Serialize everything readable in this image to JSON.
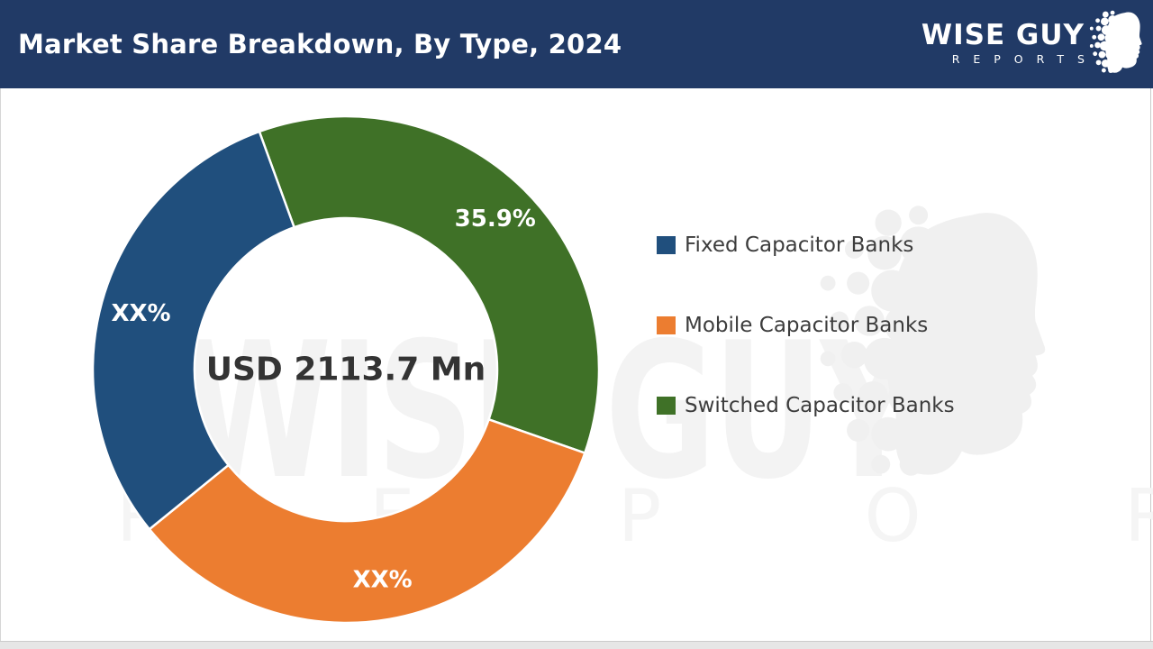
{
  "header": {
    "title": "Market Share Breakdown, By Type, 2024",
    "logo": {
      "line1": "WISE GUY",
      "line2": "REPORTS"
    }
  },
  "watermark": {
    "line1": "WISE GUY",
    "line2": "R E P O R T S"
  },
  "chart_data": {
    "type": "pie",
    "subtype": "donut",
    "title": "Market Share Breakdown, By Type, 2024",
    "center_label": "USD 2113.7 Mn",
    "rotation_deg": -20,
    "segments": [
      {
        "name": "Switched Capacitor Banks",
        "label": "35.9%",
        "value_pct_drawn": 35.9,
        "color": "#3f7127"
      },
      {
        "name": "Mobile Capacitor Banks",
        "label": "XX%",
        "value_pct_drawn": 33.8,
        "color": "#ec7d30"
      },
      {
        "name": "Fixed Capacitor Banks",
        "label": "XX%",
        "value_pct_drawn": 30.3,
        "color": "#204f7d"
      }
    ],
    "legend": [
      {
        "label": "Fixed Capacitor Banks",
        "color": "#204f7d"
      },
      {
        "label": "Mobile Capacitor Banks",
        "color": "#ec7d30"
      },
      {
        "label": "Switched Capacitor Banks",
        "color": "#3f7127"
      }
    ],
    "legend_position": "right"
  },
  "colors": {
    "header_bg": "#213a66",
    "segment_divider": "#ffffff",
    "center_text": "#333333",
    "legend_text": "#3c3c3c",
    "watermark": "#f3f3f3"
  }
}
